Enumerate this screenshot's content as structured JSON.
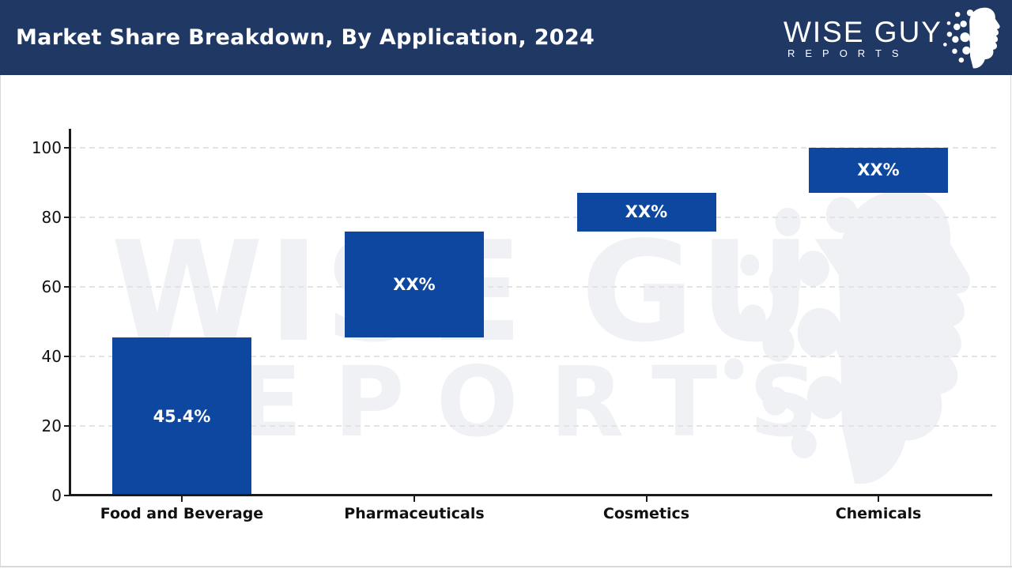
{
  "header": {
    "title": "Market Share Breakdown, By Application, 2024",
    "logo": {
      "line1": "WISE GUY",
      "line2": "REPORTS"
    }
  },
  "watermark": {
    "line1": "WISE GUY",
    "line2": "REPORTS"
  },
  "colors": {
    "header_bg": "#1f3864",
    "bar": "#0d47a0",
    "bar_label": "#ffffff",
    "grid": "#e3e3e3",
    "axis": "#1a1a1a",
    "watermark": "#f0f1f4",
    "frame": "#d9d9d9"
  },
  "chart_data": {
    "type": "bar",
    "subtype": "waterfall",
    "title": "Market Share Breakdown, By Application, 2024",
    "xlabel": "",
    "ylabel": "",
    "categories": [
      "Food and Beverage",
      "Pharmaceuticals",
      "Cosmetics",
      "Chemicals"
    ],
    "segments": [
      {
        "category": "Food and Beverage",
        "start": 0,
        "end": 45.4,
        "value": 45.4,
        "label": "45.4%"
      },
      {
        "category": "Pharmaceuticals",
        "start": 45.4,
        "end": 75.9,
        "value": 30.5,
        "label": "XX%"
      },
      {
        "category": "Cosmetics",
        "start": 75.9,
        "end": 87.1,
        "value": 11.2,
        "label": "XX%"
      },
      {
        "category": "Chemicals",
        "start": 87.1,
        "end": 100,
        "value": 12.9,
        "label": "XX%"
      }
    ],
    "yticks": [
      0,
      20,
      40,
      60,
      80,
      100
    ],
    "ylim": [
      0,
      105
    ],
    "grid": "horizontal-dashed",
    "legend": "none"
  }
}
